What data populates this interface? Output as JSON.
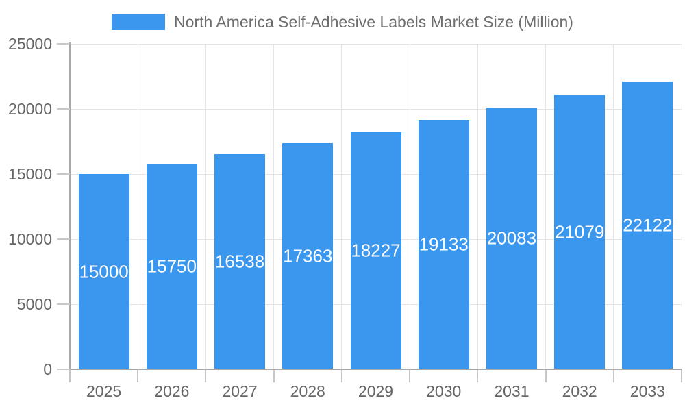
{
  "chart_data": {
    "type": "bar",
    "title": "North America Self-Adhesive Labels Market Size (Million)",
    "legend": {
      "label": "North America Self-Adhesive Labels Market Size (Million)",
      "position": "top-center"
    },
    "categories": [
      "2025",
      "2026",
      "2027",
      "2028",
      "2029",
      "2030",
      "2031",
      "2032",
      "2033"
    ],
    "series": [
      {
        "name": "North America Self-Adhesive Labels Market Size (Million)",
        "values": [
          15000,
          15750,
          16538,
          17363,
          18227,
          19133,
          20083,
          21079,
          22122
        ]
      }
    ],
    "value_labels": [
      "15000",
      "15750",
      "16538",
      "17363",
      "18227",
      "19133",
      "20083",
      "21079",
      "22122"
    ],
    "xlabel": "",
    "ylabel": "",
    "ylim": [
      0,
      25000
    ],
    "y_ticks": [
      0,
      5000,
      10000,
      15000,
      20000,
      25000
    ],
    "y_tick_labels": [
      "0",
      "5000",
      "10000",
      "15000",
      "20000",
      "25000"
    ],
    "grid": {
      "horizontal": true,
      "vertical": true
    },
    "colors": {
      "bar": "#3B97EE",
      "value_label": "#FFFFFF",
      "grid_line": "#E4E4E4",
      "axis_line": "#A8A8A8",
      "tick_mark": "#C6C6C6",
      "tick_label": "#666666",
      "legend_text": "#6E6E6E",
      "background": "#FFFFFF"
    }
  }
}
